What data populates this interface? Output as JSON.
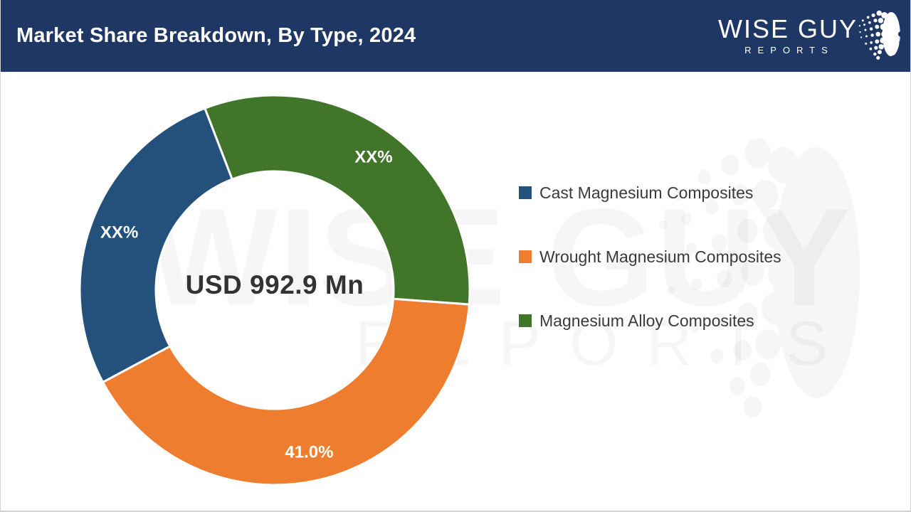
{
  "header": {
    "title": "Market Share Breakdown, By Type, 2024",
    "logo": {
      "line1": "WISE GUY",
      "line2": "REPORTS"
    }
  },
  "watermark": {
    "line1": "WISE GUY",
    "line2": "REPORTS"
  },
  "chart_data": {
    "type": "pie",
    "variant": "donut",
    "title": "Market Share Breakdown, By Type, 2024",
    "center_label": "USD 992.9 Mn",
    "start_angle_deg": -21,
    "direction": "clockwise",
    "legend_position": "right",
    "segments": [
      {
        "name": "Magnesium Alloy Composites",
        "label": "XX%",
        "value_pct": 32.0,
        "color": "#40752A"
      },
      {
        "name": "Wrought Magnesium Composites",
        "label": "41.0%",
        "value_pct": 41.0,
        "color": "#EE7D2F"
      },
      {
        "name": "Cast Magnesium Composites",
        "label": "XX%",
        "value_pct": 27.0,
        "color": "#24517B"
      }
    ]
  },
  "legend": {
    "items": [
      {
        "label": "Cast Magnesium Composites",
        "color": "#24517B"
      },
      {
        "label": "Wrought Magnesium Composites",
        "color": "#EE7D2F"
      },
      {
        "label": "Magnesium Alloy Composites",
        "color": "#40752A"
      }
    ]
  },
  "colors": {
    "header_navy": "#1F3765",
    "border_gray": "#D5D5D5",
    "center_text": "#333333",
    "legend_text": "#3A3A3A",
    "slice_label_text": "#FFFFFF"
  }
}
